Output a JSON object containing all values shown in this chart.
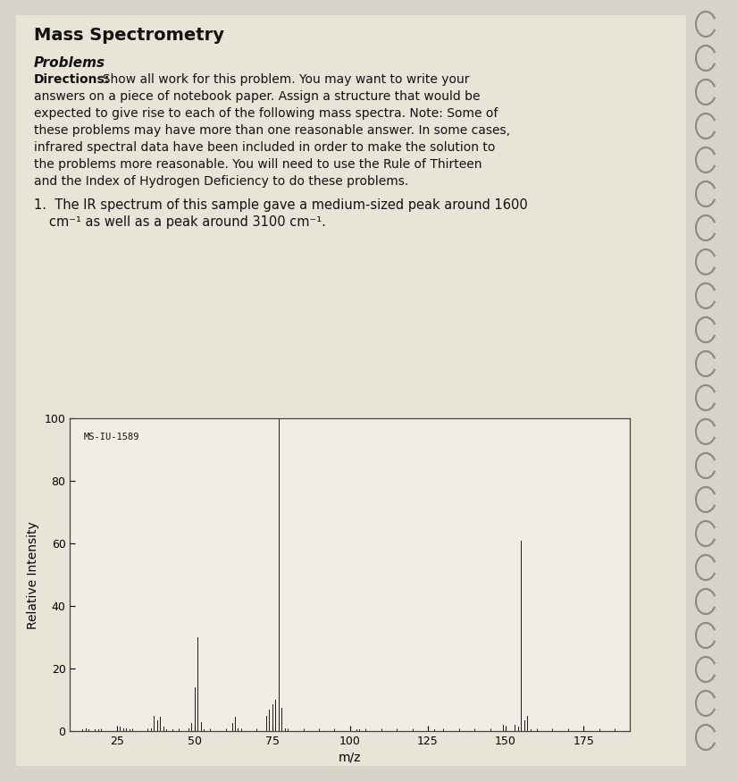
{
  "title": "Mass Spectrometry",
  "subtitle": "Problems",
  "spectrum_label": "MS-IU-1589",
  "ylabel": "Relative Intensity",
  "xlabel": "m/z",
  "xlim": [
    10,
    190
  ],
  "ylim": [
    0,
    100
  ],
  "yticks": [
    0,
    20,
    40,
    60,
    80,
    100
  ],
  "xticks": [
    25,
    50,
    75,
    100,
    125,
    150,
    175
  ],
  "background_color": "#d8d3c8",
  "plot_bg_color": "#f0ede4",
  "peaks": [
    [
      14,
      0.5
    ],
    [
      15,
      1.0
    ],
    [
      16,
      0.5
    ],
    [
      18,
      0.5
    ],
    [
      19,
      0.5
    ],
    [
      25,
      0.8
    ],
    [
      26,
      1.5
    ],
    [
      27,
      1.0
    ],
    [
      28,
      0.8
    ],
    [
      29,
      0.5
    ],
    [
      36,
      1.0
    ],
    [
      37,
      5.0
    ],
    [
      38,
      3.5
    ],
    [
      39,
      4.5
    ],
    [
      40,
      1.5
    ],
    [
      41,
      0.5
    ],
    [
      43,
      0.5
    ],
    [
      48,
      1.0
    ],
    [
      49,
      2.5
    ],
    [
      50,
      14.0
    ],
    [
      51,
      30.0
    ],
    [
      52,
      3.0
    ],
    [
      53,
      0.5
    ],
    [
      62,
      2.5
    ],
    [
      63,
      4.5
    ],
    [
      64,
      1.0
    ],
    [
      73,
      5.0
    ],
    [
      74,
      7.0
    ],
    [
      75,
      8.5
    ],
    [
      76,
      10.0
    ],
    [
      77,
      100.0
    ],
    [
      78,
      7.5
    ],
    [
      79,
      1.0
    ],
    [
      102,
      0.5
    ],
    [
      103,
      0.5
    ],
    [
      127,
      0.5
    ],
    [
      149,
      2.0
    ],
    [
      150,
      1.0
    ],
    [
      153,
      2.0
    ],
    [
      154,
      1.5
    ],
    [
      155,
      61.0
    ],
    [
      156,
      3.5
    ],
    [
      157,
      5.0
    ],
    [
      158,
      0.5
    ]
  ],
  "peak_color": "#1a1a1a",
  "text_color": "#111111",
  "title_fontsize": 14,
  "subtitle_fontsize": 11,
  "body_fontsize": 10,
  "problem_fontsize": 10.5,
  "tick_fontsize": 9,
  "label_fontsize": 10,
  "directions_bold": "Directions:",
  "directions_rest": "  Show all work for this problem. You may want to write your answers on a piece of notebook paper. Assign a structure that would be expected to give rise to each of the following mass spectra. Note: Some of these problems may have more than one reasonable answer. In some cases, infrared spectral data have been included in order to make the solution to the problems more reasonable. You will need to use the Rule of Thirteen and the Index of Hydrogen Deficiency to do these problems.",
  "problem1_num": "1.",
  "problem1_text": "The IR spectrum of this sample gave a medium-sized peak around 1600 cm",
  "problem1_sup": "-1",
  "problem1_text2": " as well as a peak around 3100 cm",
  "problem1_sup2": "-1",
  "problem1_end": "."
}
